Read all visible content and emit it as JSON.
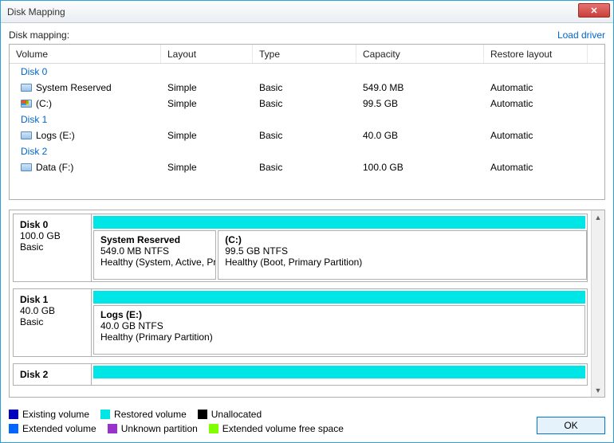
{
  "window": {
    "title": "Disk Mapping",
    "close_glyph": "✕"
  },
  "header": {
    "label": "Disk mapping:",
    "link": "Load driver"
  },
  "colors": {
    "restored": "#00e5e5",
    "existing": "#0000c0",
    "extended": "#0066ff",
    "unknown": "#9932cc",
    "unallocated": "#000000",
    "ext_free": "#7fff00"
  },
  "table": {
    "columns": [
      "Volume",
      "Layout",
      "Type",
      "Capacity",
      "Restore layout"
    ],
    "groups": [
      {
        "name": "Disk 0",
        "rows": [
          {
            "icon": "plain",
            "volume": "System Reserved",
            "layout": "Simple",
            "type": "Basic",
            "capacity": "549.0 MB",
            "restore": "Automatic"
          },
          {
            "icon": "win",
            "volume": "(C:)",
            "layout": "Simple",
            "type": "Basic",
            "capacity": "99.5 GB",
            "restore": "Automatic"
          }
        ]
      },
      {
        "name": "Disk 1",
        "rows": [
          {
            "icon": "plain",
            "volume": "Logs (E:)",
            "layout": "Simple",
            "type": "Basic",
            "capacity": "40.0 GB",
            "restore": "Automatic"
          }
        ]
      },
      {
        "name": "Disk 2",
        "rows": [
          {
            "icon": "plain",
            "volume": "Data (F:)",
            "layout": "Simple",
            "type": "Basic",
            "capacity": "100.0 GB",
            "restore": "Automatic"
          }
        ]
      }
    ]
  },
  "disks": [
    {
      "name": "Disk 0",
      "size": "100.0 GB",
      "dtype": "Basic",
      "stripe_color": "#00e5e5",
      "partitions": [
        {
          "width_pct": 25,
          "name": "System Reserved",
          "line2": "549.0 MB NTFS",
          "line3": "Healthy (System, Active, Primary Partition)"
        },
        {
          "width_pct": 75,
          "name": "(C:)",
          "line2": "99.5 GB NTFS",
          "line3": "Healthy (Boot, Primary Partition)"
        }
      ]
    },
    {
      "name": "Disk 1",
      "size": "40.0 GB",
      "dtype": "Basic",
      "stripe_color": "#00e5e5",
      "partitions": [
        {
          "width_pct": 100,
          "name": "Logs (E:)",
          "line2": "40.0 GB NTFS",
          "line3": "Healthy (Primary Partition)"
        }
      ]
    },
    {
      "name": "Disk 2",
      "size": "",
      "dtype": "",
      "stripe_color": "#00e5e5",
      "small": true,
      "partitions": []
    }
  ],
  "legend": [
    {
      "color_key": "existing",
      "label": "Existing volume"
    },
    {
      "color_key": "restored",
      "label": "Restored volume"
    },
    {
      "color_key": "unallocated",
      "label": "Unallocated"
    },
    {
      "color_key": "extended",
      "label": "Extended volume"
    },
    {
      "color_key": "unknown",
      "label": "Unknown partition"
    },
    {
      "color_key": "ext_free",
      "label": "Extended volume free space"
    }
  ],
  "buttons": {
    "ok": "OK"
  },
  "scroll": {
    "up": "▲",
    "down": "▼"
  }
}
